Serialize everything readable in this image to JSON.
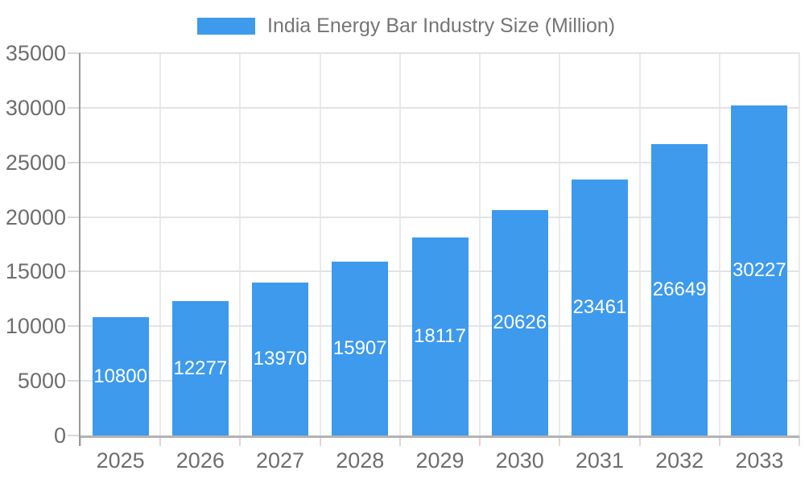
{
  "chart_data": {
    "type": "bar",
    "title": "India Energy Bar Industry Size (Million)",
    "categories": [
      "2025",
      "2026",
      "2027",
      "2028",
      "2029",
      "2030",
      "2031",
      "2032",
      "2033"
    ],
    "values": [
      10800,
      12277,
      13970,
      15907,
      18117,
      20626,
      23461,
      26649,
      30227
    ],
    "series_name": "India Energy Bar Industry Size (Million)",
    "xlabel": "",
    "ylabel": "",
    "ylim": [
      0,
      35000
    ],
    "yticks": [
      0,
      5000,
      10000,
      15000,
      20000,
      25000,
      30000,
      35000
    ],
    "grid": true,
    "legend_position": "top",
    "value_label_position": "inside-middle",
    "colors": {
      "bar": "#3D9AED",
      "value_label": "#FFFFFF",
      "axis_text": "#6E6E6E",
      "legend_text": "#757575",
      "hgridline": "#E3E3E3",
      "vgridline": "#EAEAEA",
      "tick": "#D9D9D9",
      "y_axis_line": "#999999",
      "x_axis_line": "#B3B3B3"
    }
  }
}
